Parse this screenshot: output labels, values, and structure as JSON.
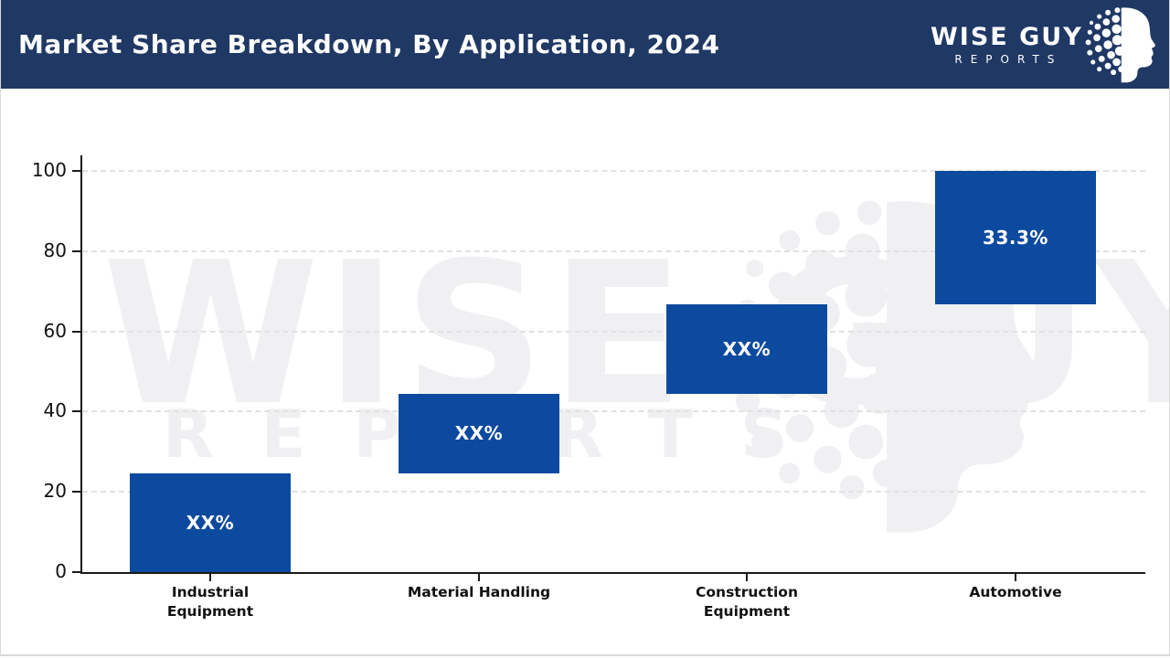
{
  "header": {
    "title": "Market Share Breakdown, By Application, 2024",
    "logo": {
      "line1": "WISE GUY",
      "line2": "REPORTS"
    }
  },
  "watermark": {
    "line1": "WISE GUY",
    "line2": "REPORTS"
  },
  "colors": {
    "header_bg": "#1f3864",
    "bar": "#0c4a9f",
    "grid": "#e1e1e1",
    "axis": "#1a1a1a",
    "watermark": "#f0f0f3"
  },
  "chart_data": {
    "type": "bar",
    "subtype": "floating-waterfall",
    "title": "Market Share Breakdown, By Application, 2024",
    "categories": [
      "Industrial Equipment",
      "Material Handling",
      "Construction Equipment",
      "Automotive"
    ],
    "categories_lines": [
      [
        "Industrial",
        "Equipment"
      ],
      [
        "Material Handling"
      ],
      [
        "Construction",
        "Equipment"
      ],
      [
        "Automotive"
      ]
    ],
    "segments": [
      {
        "category": "Industrial Equipment",
        "from": 0,
        "to": 24.7,
        "label": "XX%"
      },
      {
        "category": "Material Handling",
        "from": 24.7,
        "to": 44.5,
        "label": "XX%"
      },
      {
        "category": "Construction Equipment",
        "from": 44.5,
        "to": 66.7,
        "label": "XX%"
      },
      {
        "category": "Automotive",
        "from": 66.7,
        "to": 100,
        "label": "33.3%"
      }
    ],
    "ylim": [
      0,
      100
    ],
    "yticks": [
      0,
      20,
      40,
      60,
      80,
      100
    ],
    "grid": "horizontal-dashed",
    "legend": null,
    "xlabel": "",
    "ylabel": ""
  }
}
